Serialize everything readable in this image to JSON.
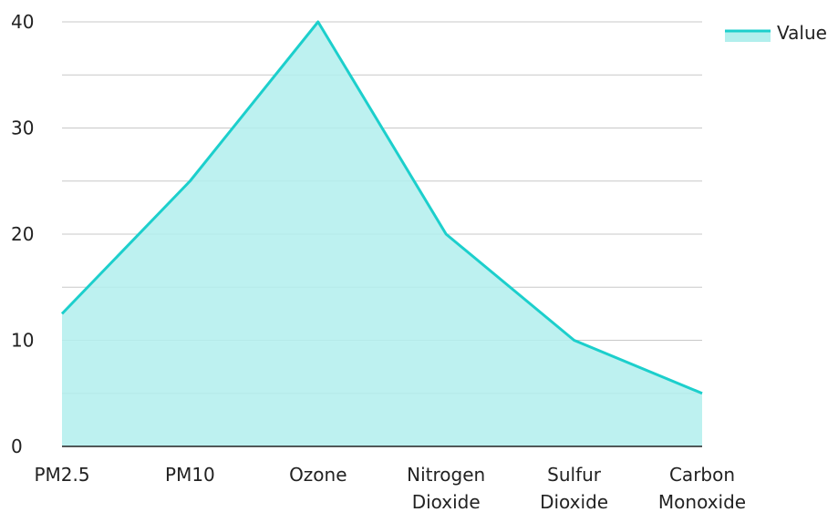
{
  "chart_data": {
    "type": "area",
    "categories": [
      "PM2.5",
      "PM10",
      "Ozone",
      "Nitrogen Dioxide",
      "Sulfur Dioxide",
      "Carbon Monoxide"
    ],
    "series": [
      {
        "name": "Value",
        "values": [
          12.5,
          25,
          40,
          20,
          10,
          5
        ]
      }
    ],
    "ylim": [
      0,
      40
    ],
    "yticks": [
      0,
      10,
      20,
      30,
      40
    ],
    "grid": true,
    "legend": "top-right",
    "colors": {
      "line": "#1ccfcc",
      "fill": "#b2efed",
      "grid": "#c8c8c8",
      "axis": "#222222"
    }
  }
}
